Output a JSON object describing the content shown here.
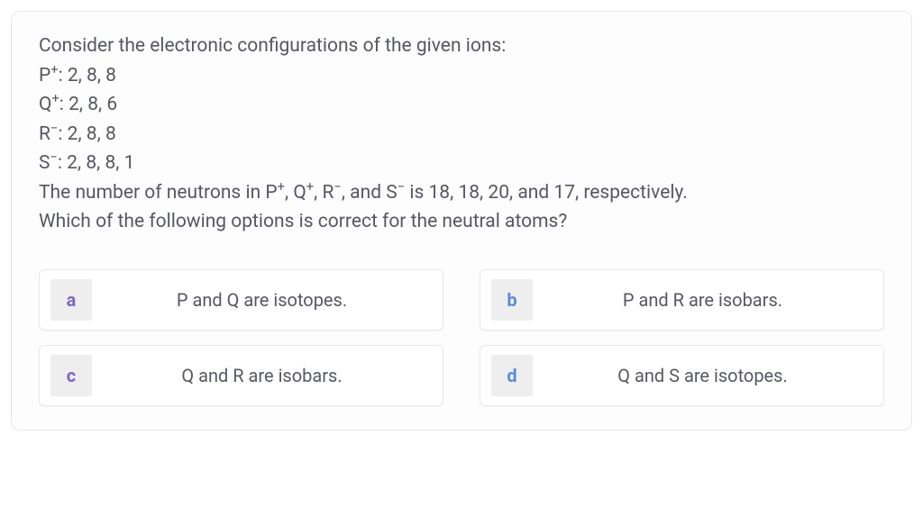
{
  "card": {
    "border_color": "#e5e7eb",
    "background_color": "#fdfdfd",
    "border_radius": 10
  },
  "question": {
    "intro": "Consider the electronic configurations of the given ions:",
    "configs": {
      "p_label_prefix": "P",
      "p_label_sup": "+",
      "p_value": ": 2, 8, 8",
      "q_label_prefix": "Q",
      "q_label_sup": "+",
      "q_value": ": 2, 8, 6",
      "r_label_prefix": "R",
      "r_label_sup": "−",
      "r_value": ": 2, 8, 8",
      "s_label_prefix": "S",
      "s_label_sup": "−",
      "s_value": ": 2, 8, 8, 1"
    },
    "neutrons_line_part1": "The number of neutrons in P",
    "neutrons_sup1": "+",
    "neutrons_line_part2": ", Q",
    "neutrons_sup2": "+",
    "neutrons_line_part3": ", R",
    "neutrons_sup3": "−",
    "neutrons_line_part4": ", and S",
    "neutrons_sup4": "−",
    "neutrons_line_part5": " is 18, 18, 20, and 17, respectively.",
    "prompt": "Which of the following options is correct for the neutral atoms?"
  },
  "options": {
    "a": {
      "letter": "a",
      "text": "P and Q are isotopes.",
      "letter_color": "#7b68bc"
    },
    "b": {
      "letter": "b",
      "text": "P and R are isobars.",
      "letter_color": "#5b8bd4"
    },
    "c": {
      "letter": "c",
      "text": "Q and R are isobars.",
      "letter_color": "#7b68bc"
    },
    "d": {
      "letter": "d",
      "text": "Q and S are isotopes.",
      "letter_color": "#5b8bd4"
    }
  },
  "style": {
    "text_color": "#565863",
    "body_fontsize": 21,
    "option_fontsize": 20,
    "letter_bg": "#eeeeee"
  }
}
